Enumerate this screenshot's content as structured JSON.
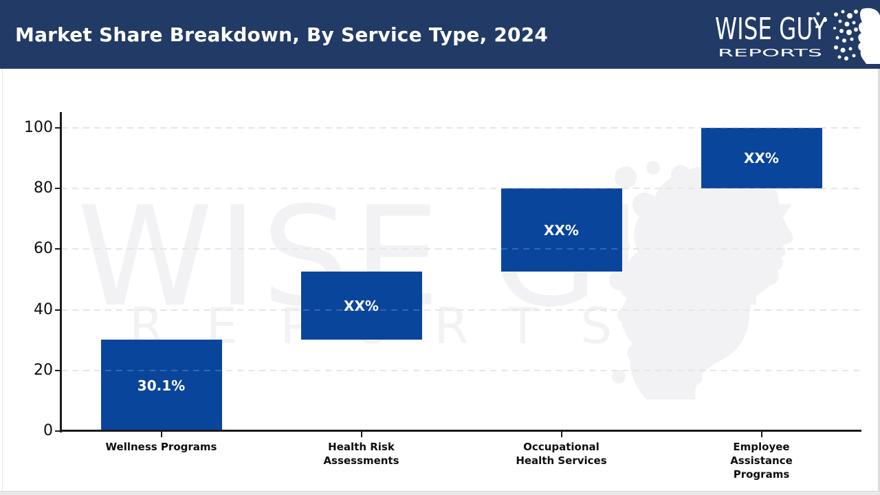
{
  "header": {
    "title": "Market Share Breakdown, By Service Type, 2024",
    "logo": {
      "brand": "WISE GUY",
      "sub": "REPORTS"
    }
  },
  "watermark": {
    "brand": "WISE GUY",
    "sub": "REPORTS"
  },
  "chart_data": {
    "type": "bar",
    "subtype": "waterfall",
    "title": "Market Share Breakdown, By Service Type, 2024",
    "xlabel": "",
    "ylabel": "",
    "categories": [
      "Wellness Programs",
      "Health Risk\nAssessments",
      "Occupational\nHealth Services",
      "Employee\nAssistance\nPrograms"
    ],
    "segments": [
      {
        "category": "Wellness Programs",
        "start": 0,
        "end": 30.1,
        "label": "30.1%"
      },
      {
        "category": "Health Risk\nAssessments",
        "start": 30.1,
        "end": 52.5,
        "label": "XX%"
      },
      {
        "category": "Occupational\nHealth Services",
        "start": 52.5,
        "end": 80,
        "label": "XX%"
      },
      {
        "category": "Employee\nAssistance\nPrograms",
        "start": 80,
        "end": 100,
        "label": "XX%"
      }
    ],
    "yticks": [
      0,
      20,
      40,
      60,
      80,
      100
    ],
    "ylim": [
      0,
      105
    ],
    "grid": "dashed horizontal",
    "legend": "none",
    "bar_color": "#0a459c"
  },
  "colors": {
    "header_bg": "#213a66",
    "bar": "#0a459c",
    "gridline": "#e0e0e0",
    "axis": "#1a1a1a",
    "watermark": "#f2f2f5",
    "label_text": "#0d0d0d",
    "bar_label_text": "#ffffff"
  }
}
